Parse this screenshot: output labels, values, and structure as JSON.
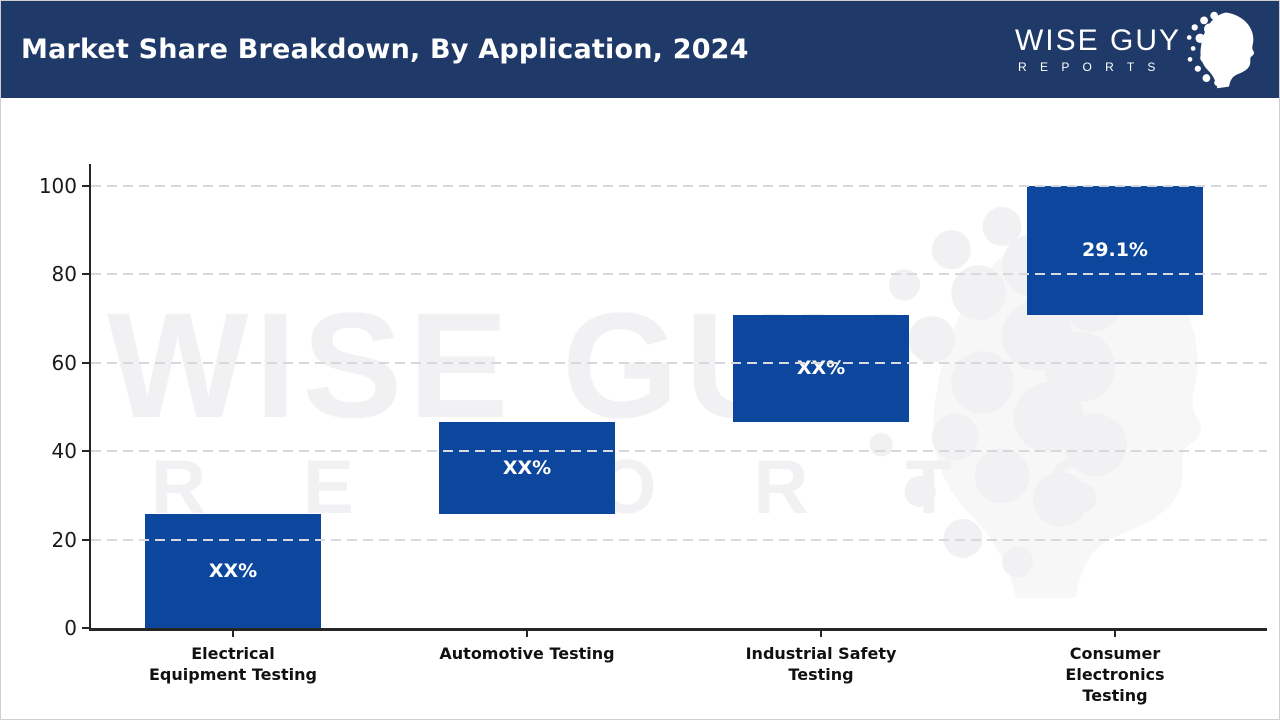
{
  "header": {
    "title": "Market Share Breakdown, By Application, 2024",
    "logo": {
      "line1": "WISE GUY",
      "line2": "R E P O R T S"
    }
  },
  "watermark": {
    "line1": "WISE GUY",
    "line2": "R E P O R T S"
  },
  "chart_data": {
    "type": "bar",
    "subtype": "floating-waterfall",
    "title": "Market Share Breakdown, By Application, 2024",
    "xlabel": "",
    "ylabel": "",
    "categories": [
      "Electrical\nEquipment Testing",
      "Automotive Testing",
      "Industrial Safety\nTesting",
      "Consumer\nElectronics\nTesting"
    ],
    "segments": [
      {
        "start": 0,
        "end": 25.8,
        "label": "XX%"
      },
      {
        "start": 25.8,
        "end": 46.6,
        "label": "XX%"
      },
      {
        "start": 46.6,
        "end": 70.9,
        "label": "XX%"
      },
      {
        "start": 70.9,
        "end": 100,
        "label": "29.1%"
      }
    ],
    "y_ticks": [
      0,
      20,
      40,
      60,
      80,
      100
    ],
    "ylim": [
      0,
      105
    ],
    "grid": "dashed-horizontal",
    "legend": "none",
    "colors": {
      "bar": "#0c479d",
      "bar_label": "#ffffff",
      "grid_line": "#d8d8da",
      "axis": "#262626",
      "header_bg": "#1f3a68",
      "watermark": "#f1f1f3"
    }
  }
}
